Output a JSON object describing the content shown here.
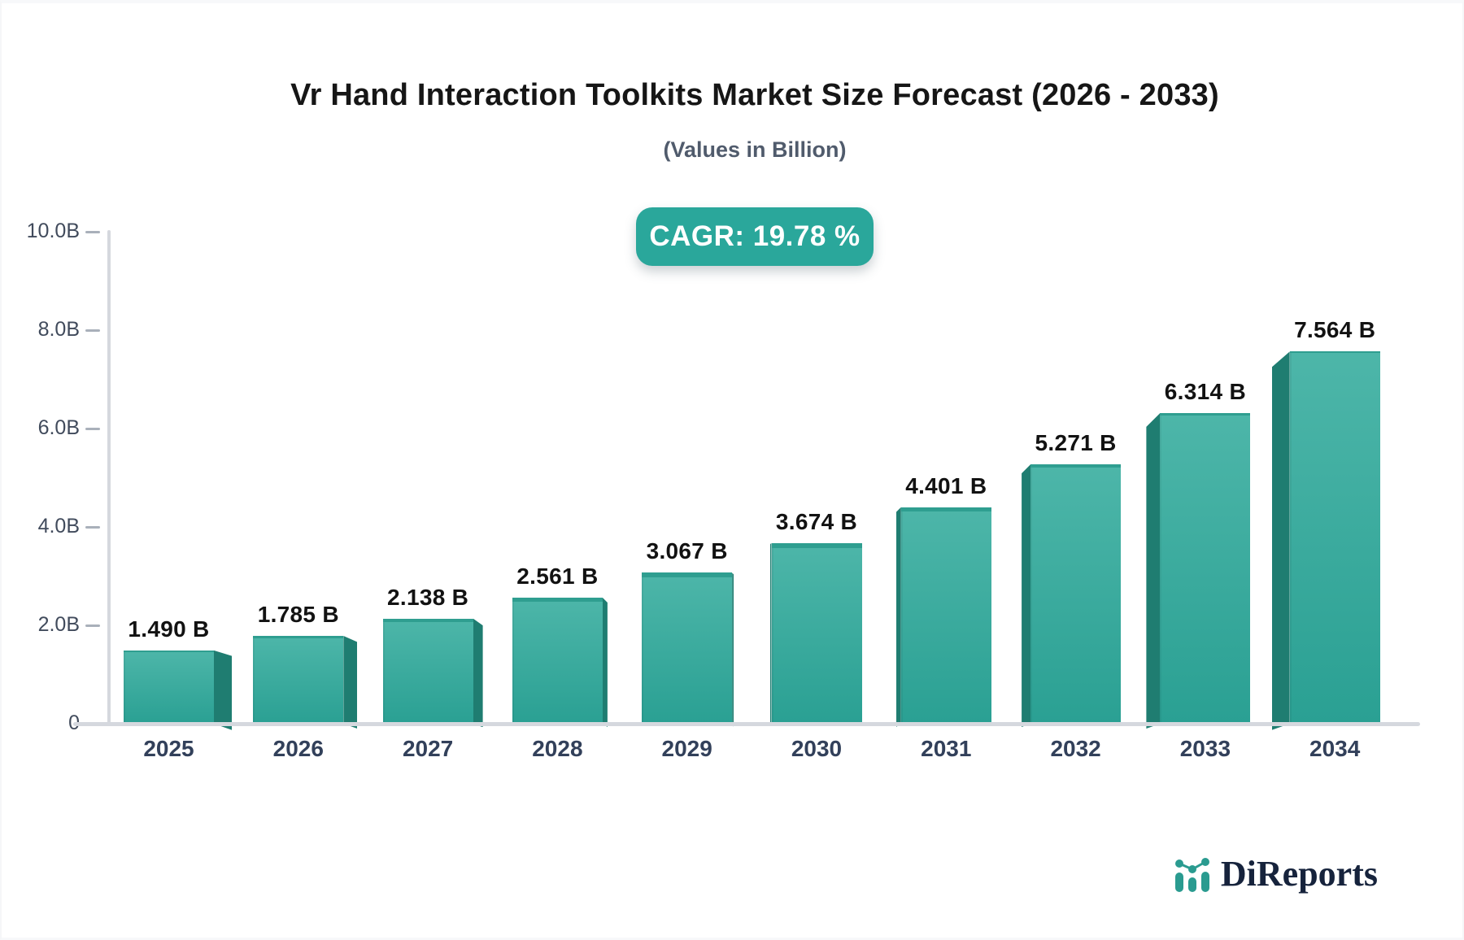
{
  "title": "Vr Hand Interaction Toolkits Market Size Forecast (2026 - 2033)",
  "subtitle": "(Values in Billion)",
  "cagr_badge": "CAGR: 19.78 %",
  "brand": {
    "name": "DiReports",
    "icon": "bar-line-chart-logo"
  },
  "colors": {
    "badge_bg": "#2aa79b",
    "badge_text": "#ffffff",
    "bar_top": "#4db6a9",
    "bar_bottom": "#2aa093",
    "bar_side": "#1f7d71",
    "bar_cap": "#2f9e90",
    "axis_line": "#d5d8de",
    "tick": "#a9b0ba",
    "y_label": "#414b5c",
    "x_label": "#32405a",
    "data_label": "#121212",
    "logo_navy": "#16233c",
    "logo_teal": "#2a9b90"
  },
  "chart_data": {
    "type": "bar",
    "title": "Vr Hand Interaction Toolkits Market Size Forecast (2026 - 2033)",
    "subtitle": "(Values in Billion)",
    "categories": [
      "2025",
      "2026",
      "2027",
      "2028",
      "2029",
      "2030",
      "2031",
      "2032",
      "2033",
      "2034"
    ],
    "values": [
      1.49,
      1.785,
      2.138,
      2.561,
      3.067,
      3.674,
      4.401,
      5.271,
      6.314,
      7.564
    ],
    "bar_labels": [
      "1.490 B",
      "1.785 B",
      "2.138 B",
      "2.561 B",
      "3.067 B",
      "3.674 B",
      "4.401 B",
      "5.271 B",
      "6.314 B",
      "7.564 B"
    ],
    "yticks": [
      {
        "value": 0,
        "label": "0"
      },
      {
        "value": 2,
        "label": "2.0B"
      },
      {
        "value": 4,
        "label": "4.0B"
      },
      {
        "value": 6,
        "label": "6.0B"
      },
      {
        "value": 8,
        "label": "8.0B"
      },
      {
        "value": 10,
        "label": "10.0B"
      }
    ],
    "ylim": [
      0,
      10
    ],
    "xlabel": "",
    "ylabel": "",
    "grid": false,
    "legend": "none",
    "cagr": "19.78 %"
  }
}
